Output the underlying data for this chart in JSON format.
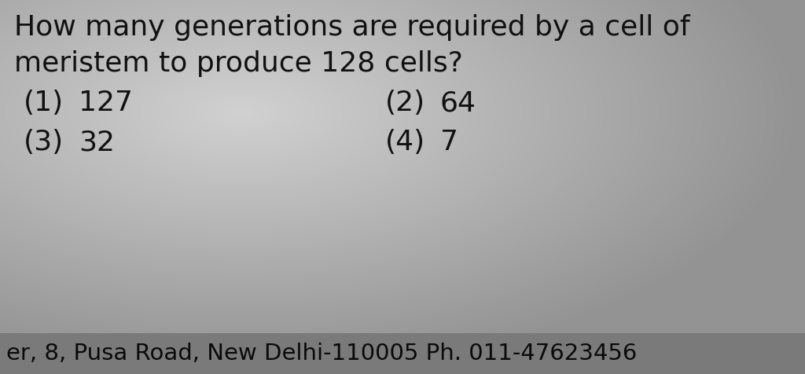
{
  "question_line1": "How many generations are required by a cell of",
  "question_line2": "meristem to produce 128 cells?",
  "option1_label": "(1)",
  "option1_value": "127",
  "option2_label": "(2)",
  "option2_value": "64",
  "option3_label": "(3)",
  "option3_value": "32",
  "option4_label": "(4)",
  "option4_value": "7",
  "footer_text": "er, 8, Pusa Road, New Delhi-110005 Ph. 011-47623456",
  "bg_color_light": "#d4d4d4",
  "bg_color_dark": "#a0a0a0",
  "footer_bg_color": "#7a7a7a",
  "text_color": "#111111",
  "footer_text_color": "#0a0a0a",
  "question_fontsize": 26,
  "option_fontsize": 26,
  "footer_fontsize": 21
}
